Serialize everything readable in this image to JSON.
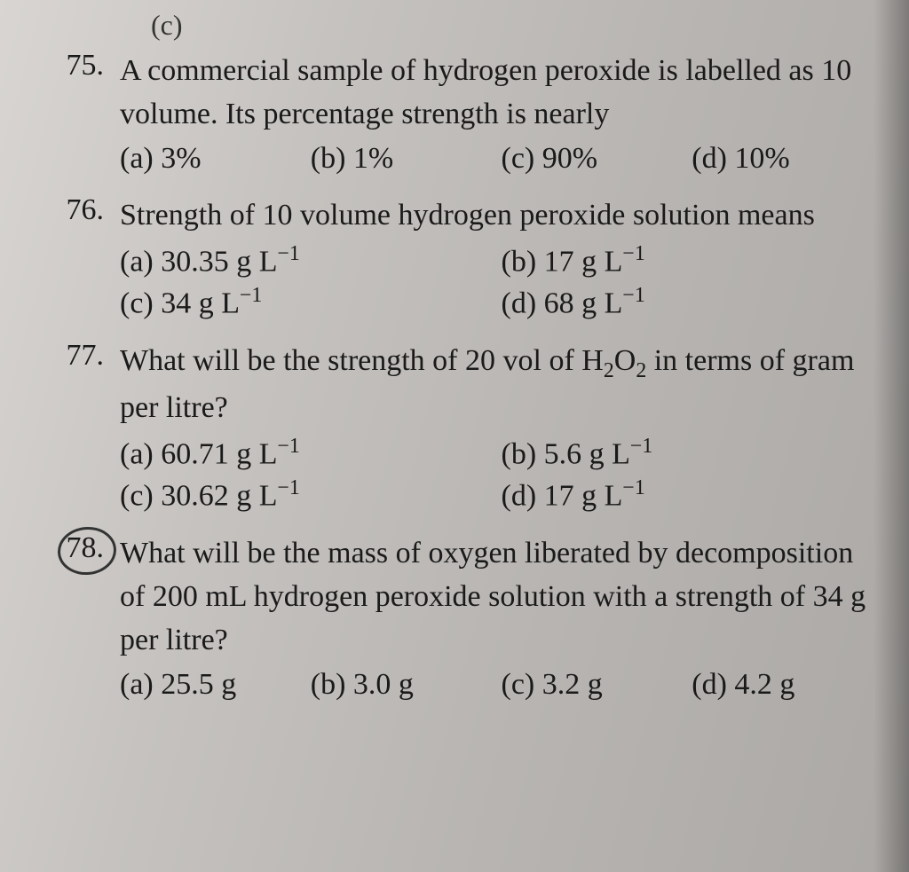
{
  "partial_line": "(c)",
  "questions": [
    {
      "number": "75.",
      "circled": false,
      "text": "A commercial sample of hydrogen peroxide is labelled as 10 volume. Its percentage strength is nearly",
      "option_layout": "four",
      "options": [
        {
          "label": "(a)",
          "text": "3%"
        },
        {
          "label": "(b)",
          "text": "1%"
        },
        {
          "label": "(c)",
          "text": "90%"
        },
        {
          "label": "(d)",
          "text": "10%"
        }
      ]
    },
    {
      "number": "76.",
      "circled": false,
      "text": "Strength of 10 volume hydrogen peroxide solution means",
      "option_layout": "two",
      "options": [
        {
          "label": "(a)",
          "html": "30.35 g L<sup class='sup'>−1</sup>"
        },
        {
          "label": "(b)",
          "html": "17 g L<sup class='sup'>−1</sup>"
        },
        {
          "label": "(c)",
          "html": "34 g L<sup class='sup'>−1</sup>"
        },
        {
          "label": "(d)",
          "html": "68 g L<sup class='sup'>−1</sup>"
        }
      ]
    },
    {
      "number": "77.",
      "circled": false,
      "html": "What will be the strength of 20 vol of H<sub class='sub'>2</sub>O<sub class='sub'>2</sub> in terms of gram per litre?",
      "option_layout": "two",
      "options": [
        {
          "label": "(a)",
          "html": "60.71 g L<sup class='sup'>−1</sup>"
        },
        {
          "label": "(b)",
          "html": "5.6 g L<sup class='sup'>−1</sup>"
        },
        {
          "label": "(c)",
          "html": "30.62 g L<sup class='sup'>−1</sup>"
        },
        {
          "label": "(d)",
          "html": "17 g L<sup class='sup'>−1</sup>"
        }
      ]
    },
    {
      "number": "78.",
      "circled": true,
      "text": "What will be the mass of oxygen liberated by decomposition of 200 mL hydrogen peroxide solution with a strength of 34 g per litre?",
      "option_layout": "four",
      "options": [
        {
          "label": "(a)",
          "text": "25.5 g"
        },
        {
          "label": "(b)",
          "text": "3.0 g"
        },
        {
          "label": "(c)",
          "text": "3.2 g"
        },
        {
          "label": "(d)",
          "text": "4.2 g"
        }
      ]
    }
  ]
}
